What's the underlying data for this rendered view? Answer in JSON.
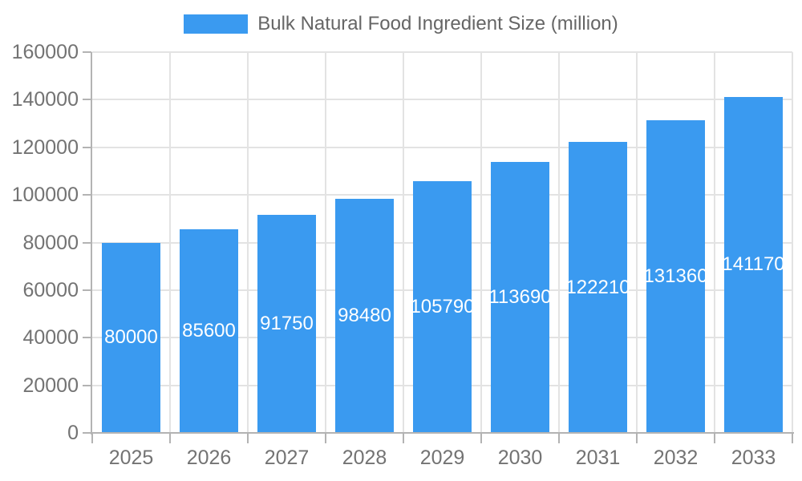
{
  "legend": {
    "label": "Bulk Natural Food Ingredient Size (million)"
  },
  "colors": {
    "bar": "#3a9af0",
    "bar_value_label": "#ffffff",
    "grid": "#e3e3e3",
    "axis": "#b3b3b3",
    "tick_label": "#737373",
    "legend_text": "#666666",
    "background": "#ffffff"
  },
  "chart_data": {
    "type": "bar",
    "title": "",
    "series_name": "Bulk Natural Food Ingredient Size (million)",
    "categories": [
      "2025",
      "2026",
      "2027",
      "2028",
      "2029",
      "2030",
      "2031",
      "2032",
      "2033"
    ],
    "values": [
      80000,
      85600,
      91750,
      98480,
      105790,
      113690,
      122210,
      131360,
      141170
    ],
    "value_labels": [
      "80000",
      "85600",
      "91750",
      "98480",
      "105790",
      "113690",
      "122210",
      "131360",
      "141170"
    ],
    "value_label_position": "center-inside-bar",
    "xlabel": "",
    "ylabel": "",
    "ylim": [
      0,
      160000
    ],
    "yticks": [
      0,
      20000,
      40000,
      60000,
      80000,
      100000,
      120000,
      140000,
      160000
    ],
    "ytick_labels": [
      "0",
      "20000",
      "40000",
      "60000",
      "80000",
      "100000",
      "120000",
      "140000",
      "160000"
    ],
    "grid": true,
    "legend_position": "top"
  }
}
